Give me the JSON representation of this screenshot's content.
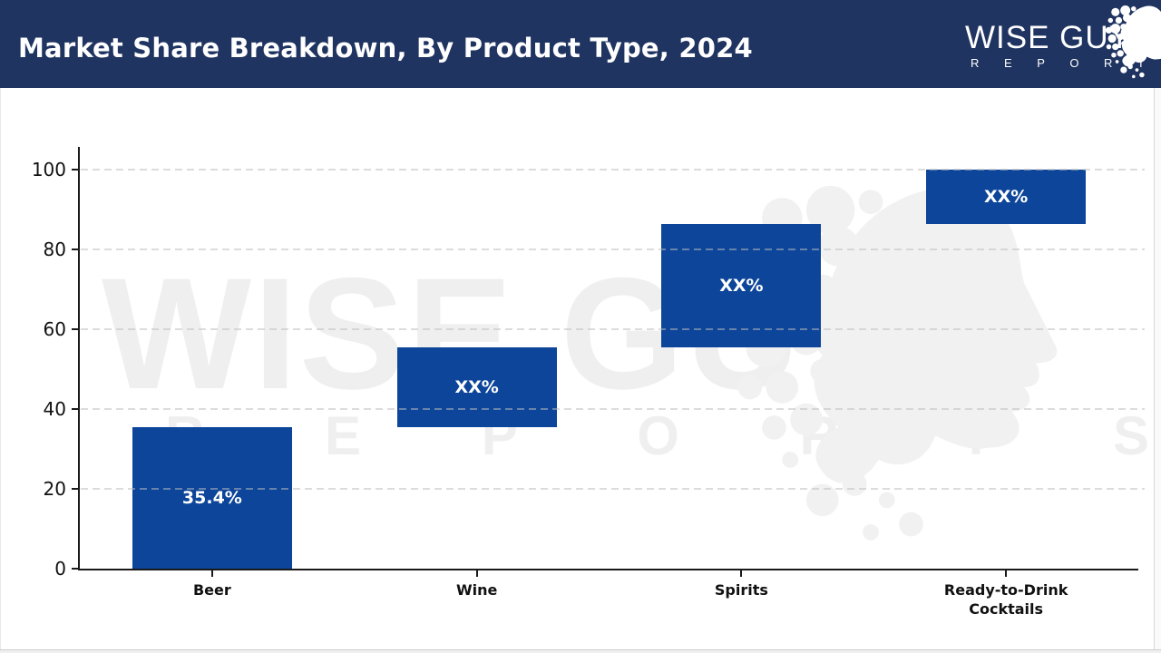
{
  "header": {
    "title": "Market Share Breakdown, By Product Type, 2024",
    "bg_color": "#1f3461",
    "logo": {
      "name": "WISE GUY",
      "sub": "R E P O R T S"
    }
  },
  "watermark": {
    "big": "WISE GUY",
    "sub": "R E P O R T S"
  },
  "chart_data": {
    "type": "bar",
    "variant": "waterfall",
    "title": "Market Share Breakdown, By Product Type, 2024",
    "categories": [
      "Beer",
      "Wine",
      "Spirits",
      "Ready-to-Drink Cocktails"
    ],
    "category_lines": [
      [
        "Beer"
      ],
      [
        "Wine"
      ],
      [
        "Spirits"
      ],
      [
        "Ready-to-Drink",
        "Cocktails"
      ]
    ],
    "segments": [
      {
        "category": "Beer",
        "start": 0,
        "end": 35.4,
        "label": "35.4%"
      },
      {
        "category": "Wine",
        "start": 35.4,
        "end": 55.5,
        "label": "XX%"
      },
      {
        "category": "Spirits",
        "start": 55.5,
        "end": 86.4,
        "label": "XX%"
      },
      {
        "category": "Ready-to-Drink Cocktails",
        "start": 86.4,
        "end": 100,
        "label": "XX%"
      }
    ],
    "xlabel": "",
    "ylabel": "",
    "yticks": [
      0,
      20,
      40,
      60,
      80,
      100
    ],
    "ylim": [
      0,
      105.7
    ],
    "bar_color": "#0c4599",
    "grid": {
      "axis": "y",
      "style": "dashed",
      "color": "#dddddd"
    },
    "legend": "none"
  },
  "colors": {
    "header_bg": "#1f3461",
    "bar": "#0c4599",
    "axis": "#1a1a1a",
    "watermark": "#efefef"
  }
}
